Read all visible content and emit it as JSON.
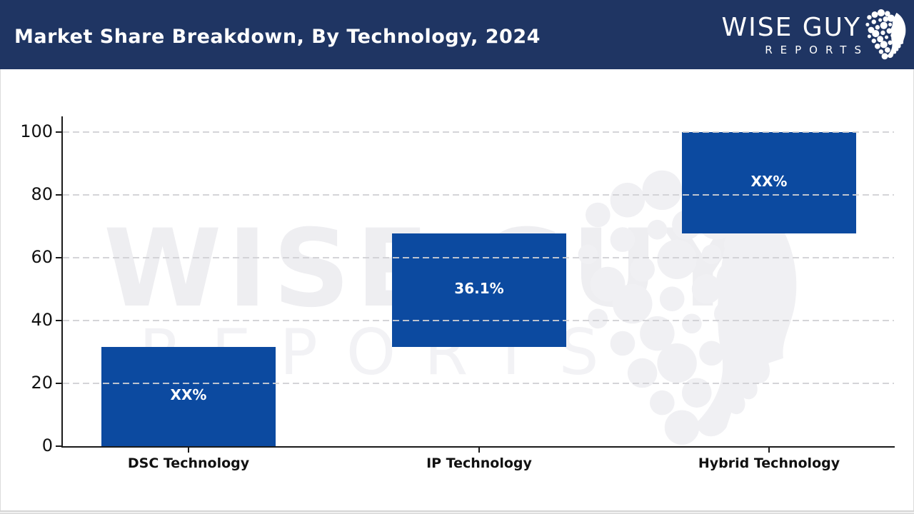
{
  "header": {
    "title": "Market Share Breakdown, By Technology, 2024",
    "logo": {
      "line1": "WISE GUY",
      "line2": "REPORTS"
    }
  },
  "watermark": {
    "line1": "WISE GUY",
    "line2": "REPORTS"
  },
  "chart_data": {
    "type": "bar",
    "subtype": "waterfall-floating-bars",
    "title": "Market Share Breakdown, By Technology, 2024",
    "categories": [
      "DSC Technology",
      "IP Technology",
      "Hybrid Technology"
    ],
    "segments": [
      {
        "category": "DSC Technology",
        "base": 0,
        "top": 31.7,
        "label": "XX%"
      },
      {
        "category": "IP Technology",
        "base": 31.7,
        "top": 67.8,
        "label": "36.1%"
      },
      {
        "category": "Hybrid Technology",
        "base": 67.8,
        "top": 100,
        "label": "XX%"
      }
    ],
    "yticks": [
      0,
      20,
      40,
      60,
      80,
      100
    ],
    "ylim": [
      0,
      105
    ],
    "xlabel": "",
    "ylabel": "",
    "legend": "none",
    "grid": "horizontal-dashed",
    "bar_color": "#0c4aa0",
    "bar_label_color": "#ffffff",
    "grid_color": "#d0d0d4",
    "axis_color": "#1a1a1a",
    "header_bg_color": "#1f3563",
    "watermark_color": "#eeeef1"
  }
}
